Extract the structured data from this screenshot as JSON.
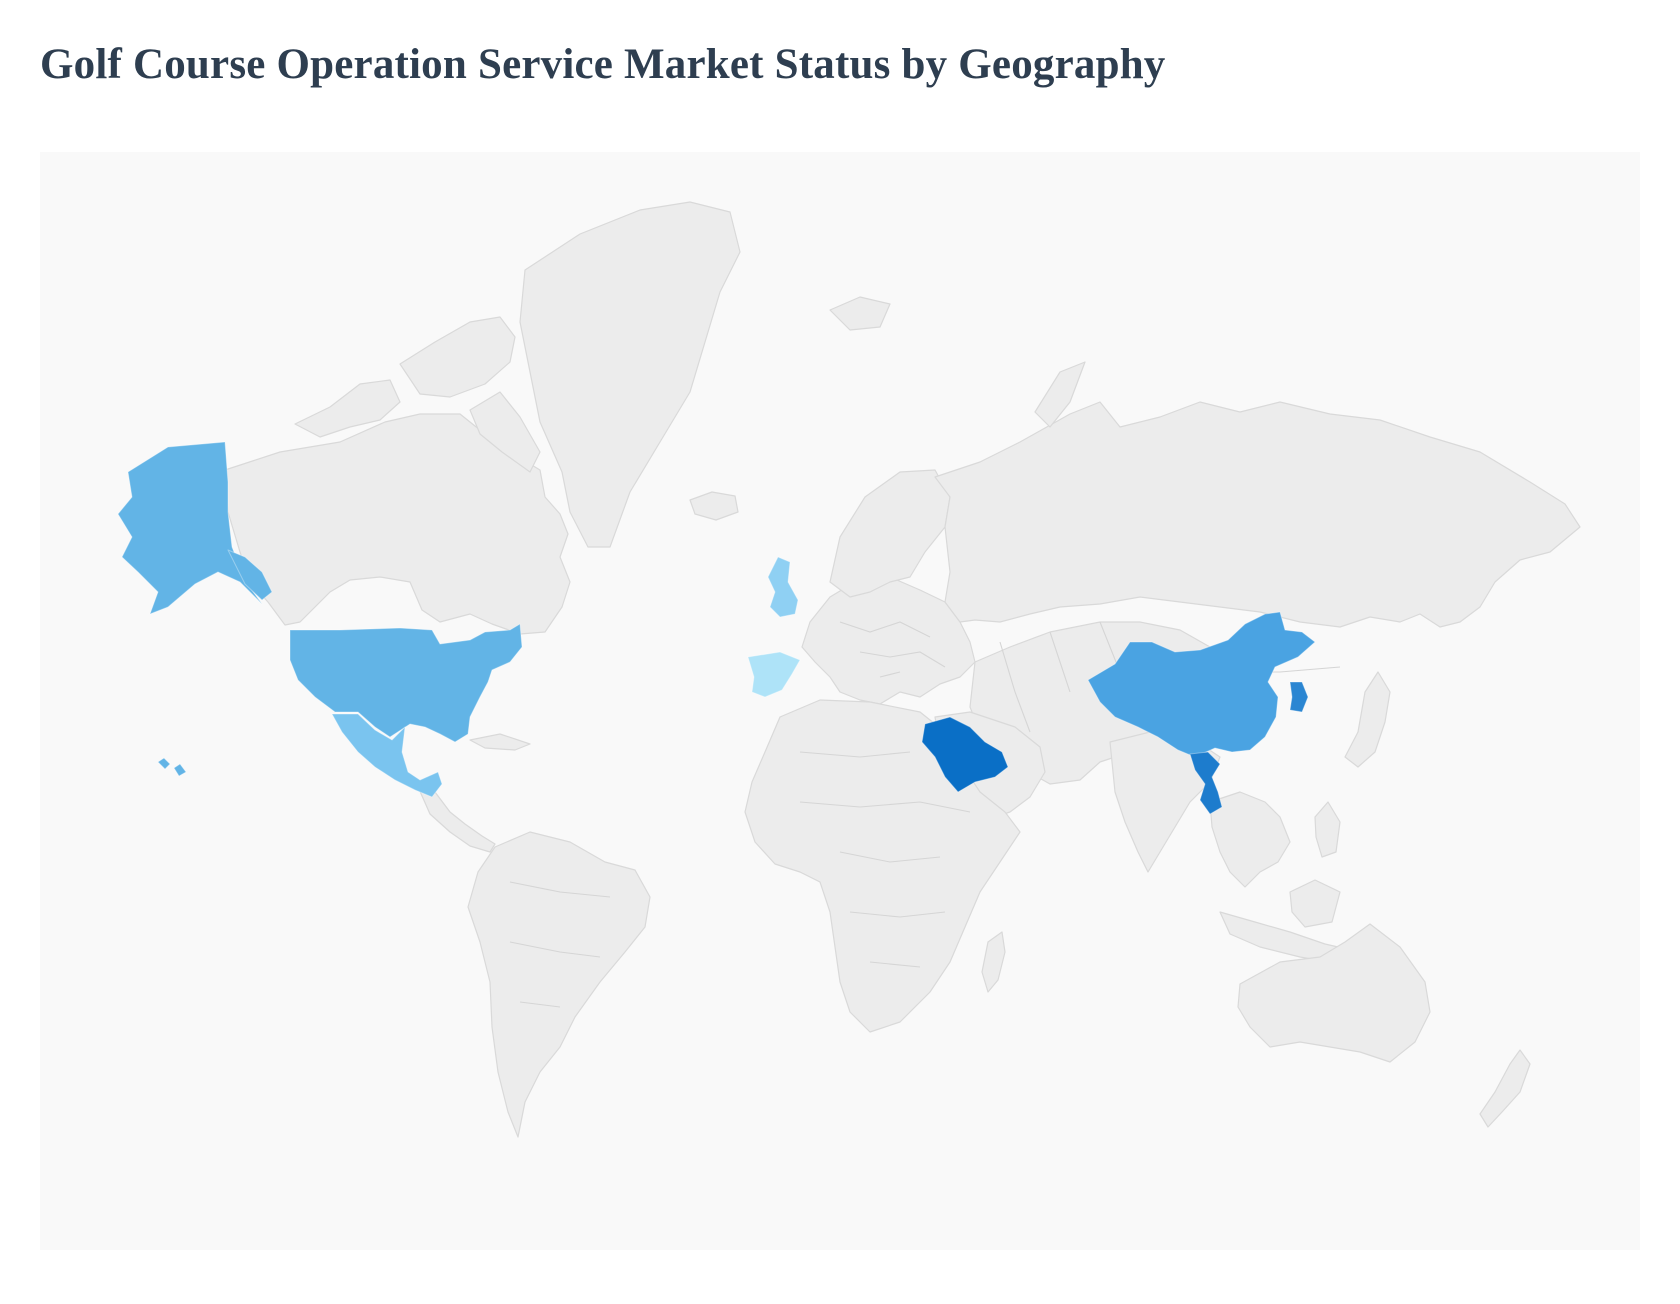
{
  "title": "Golf Course Operation Service Market Status by Geography",
  "colors": {
    "background": "#f9f9f9",
    "land": "#ececec",
    "land_border": "#d9d9d9",
    "scale_light": "#aee3f8",
    "scale_mid": "#62b4e6",
    "scale_dark": "#0a6fc6"
  },
  "highlighted_regions": [
    {
      "name": "United States",
      "shade": "#62b4e6"
    },
    {
      "name": "Mexico",
      "shade": "#7ac4ef"
    },
    {
      "name": "United Kingdom",
      "shade": "#8fd0f3"
    },
    {
      "name": "Spain",
      "shade": "#aee3f8"
    },
    {
      "name": "Saudi Arabia",
      "shade": "#0a6fc6"
    },
    {
      "name": "China",
      "shade": "#4aa3e2"
    },
    {
      "name": "South Korea",
      "shade": "#2b86d2"
    },
    {
      "name": "Vietnam",
      "shade": "#1d7ccd"
    }
  ]
}
